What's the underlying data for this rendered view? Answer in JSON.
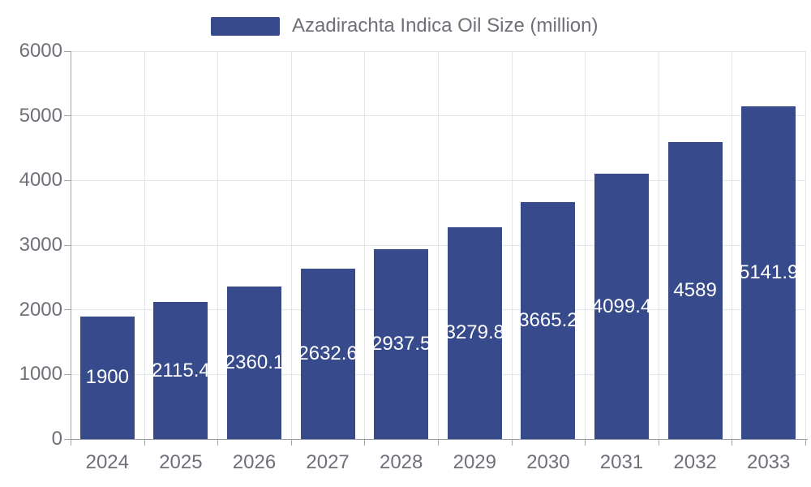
{
  "legend": {
    "label": "Azadirachta Indica Oil Size (million)"
  },
  "chart_data": {
    "type": "bar",
    "title": "Azadirachta Indica Oil Size (million)",
    "series_name": "Azadirachta Indica Oil Size (million)",
    "categories": [
      "2024",
      "2025",
      "2026",
      "2027",
      "2028",
      "2029",
      "2030",
      "2031",
      "2032",
      "2033"
    ],
    "values": [
      1900,
      2115.4,
      2360.1,
      2632.6,
      2937.5,
      3279.8,
      3665.2,
      4099.4,
      4589,
      5141.9
    ],
    "bar_labels": [
      "1900",
      "2115.4",
      "2360.1",
      "2632.6",
      "2937.5",
      "3279.8",
      "3665.2",
      "4099.4",
      "4589",
      "5141.9"
    ],
    "xlabel": "",
    "ylabel": "",
    "ylim": [
      0,
      6000
    ],
    "y_ticks": [
      0,
      1000,
      2000,
      3000,
      4000,
      5000,
      6000
    ],
    "grid": true,
    "legend_position": "top",
    "colors": {
      "bar": "#364A8C",
      "bar_label_text": "#FFFFFF",
      "axis_text": "#6E7079",
      "grid": "#E3E5E9",
      "axis_line": "#A0A3AA",
      "background": "#FFFFFF"
    }
  }
}
